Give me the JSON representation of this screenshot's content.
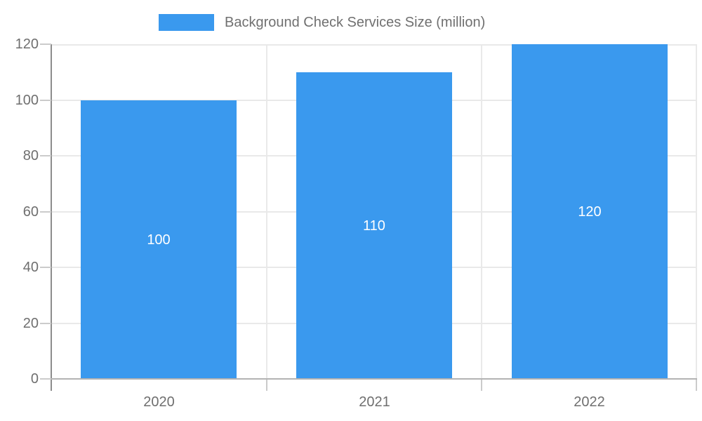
{
  "colors": {
    "bar": "#3a99ee",
    "background": "#ffffff",
    "axis_label": "#6f6f6f",
    "legend_text": "#707070",
    "value_label": "#ffffff"
  },
  "legend": {
    "label": "Background Check Services Size (million)"
  },
  "chart_data": {
    "type": "bar",
    "title": "",
    "xlabel": "",
    "ylabel": "",
    "categories": [
      "2020",
      "2021",
      "2022"
    ],
    "series": [
      {
        "name": "Background Check Services Size (million)",
        "color": "#3a99ee",
        "values": [
          100,
          110,
          120
        ]
      }
    ],
    "value_labels": [
      "100",
      "110",
      "120"
    ],
    "ylim": [
      0,
      120
    ],
    "yticks": [
      0,
      20,
      40,
      60,
      80,
      100,
      120
    ],
    "grid": true,
    "legend_position": "top",
    "value_labels_inside_bars": true
  }
}
